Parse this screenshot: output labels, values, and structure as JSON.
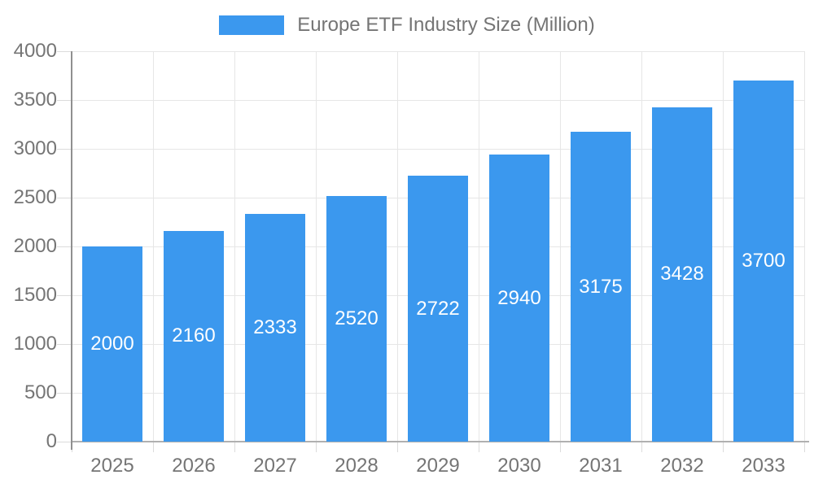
{
  "legend": {
    "label": "Europe ETF Industry Size (Million)"
  },
  "colors": {
    "bar": "#3B98EE",
    "axis_text": "#757575",
    "grid": "#E6E6E6",
    "tick": "#DBDBDB",
    "y_axis_line": "#8F8F8F",
    "baseline": "#B0B0B0",
    "value_label": "#FFFFFF"
  },
  "chart_data": {
    "type": "bar",
    "title": "Europe ETF Industry Size (Million)",
    "categories": [
      "2025",
      "2026",
      "2027",
      "2028",
      "2029",
      "2030",
      "2031",
      "2032",
      "2033"
    ],
    "values": [
      2000,
      2160,
      2333,
      2520,
      2722,
      2940,
      3175,
      3428,
      3700
    ],
    "xlabel": "",
    "ylabel": "",
    "ylim": [
      0,
      4000
    ],
    "yticks": [
      0,
      500,
      1000,
      1500,
      2000,
      2500,
      3000,
      3500,
      4000
    ],
    "legend_position": "top-center",
    "grid": true,
    "value_labels": "inside-center"
  }
}
